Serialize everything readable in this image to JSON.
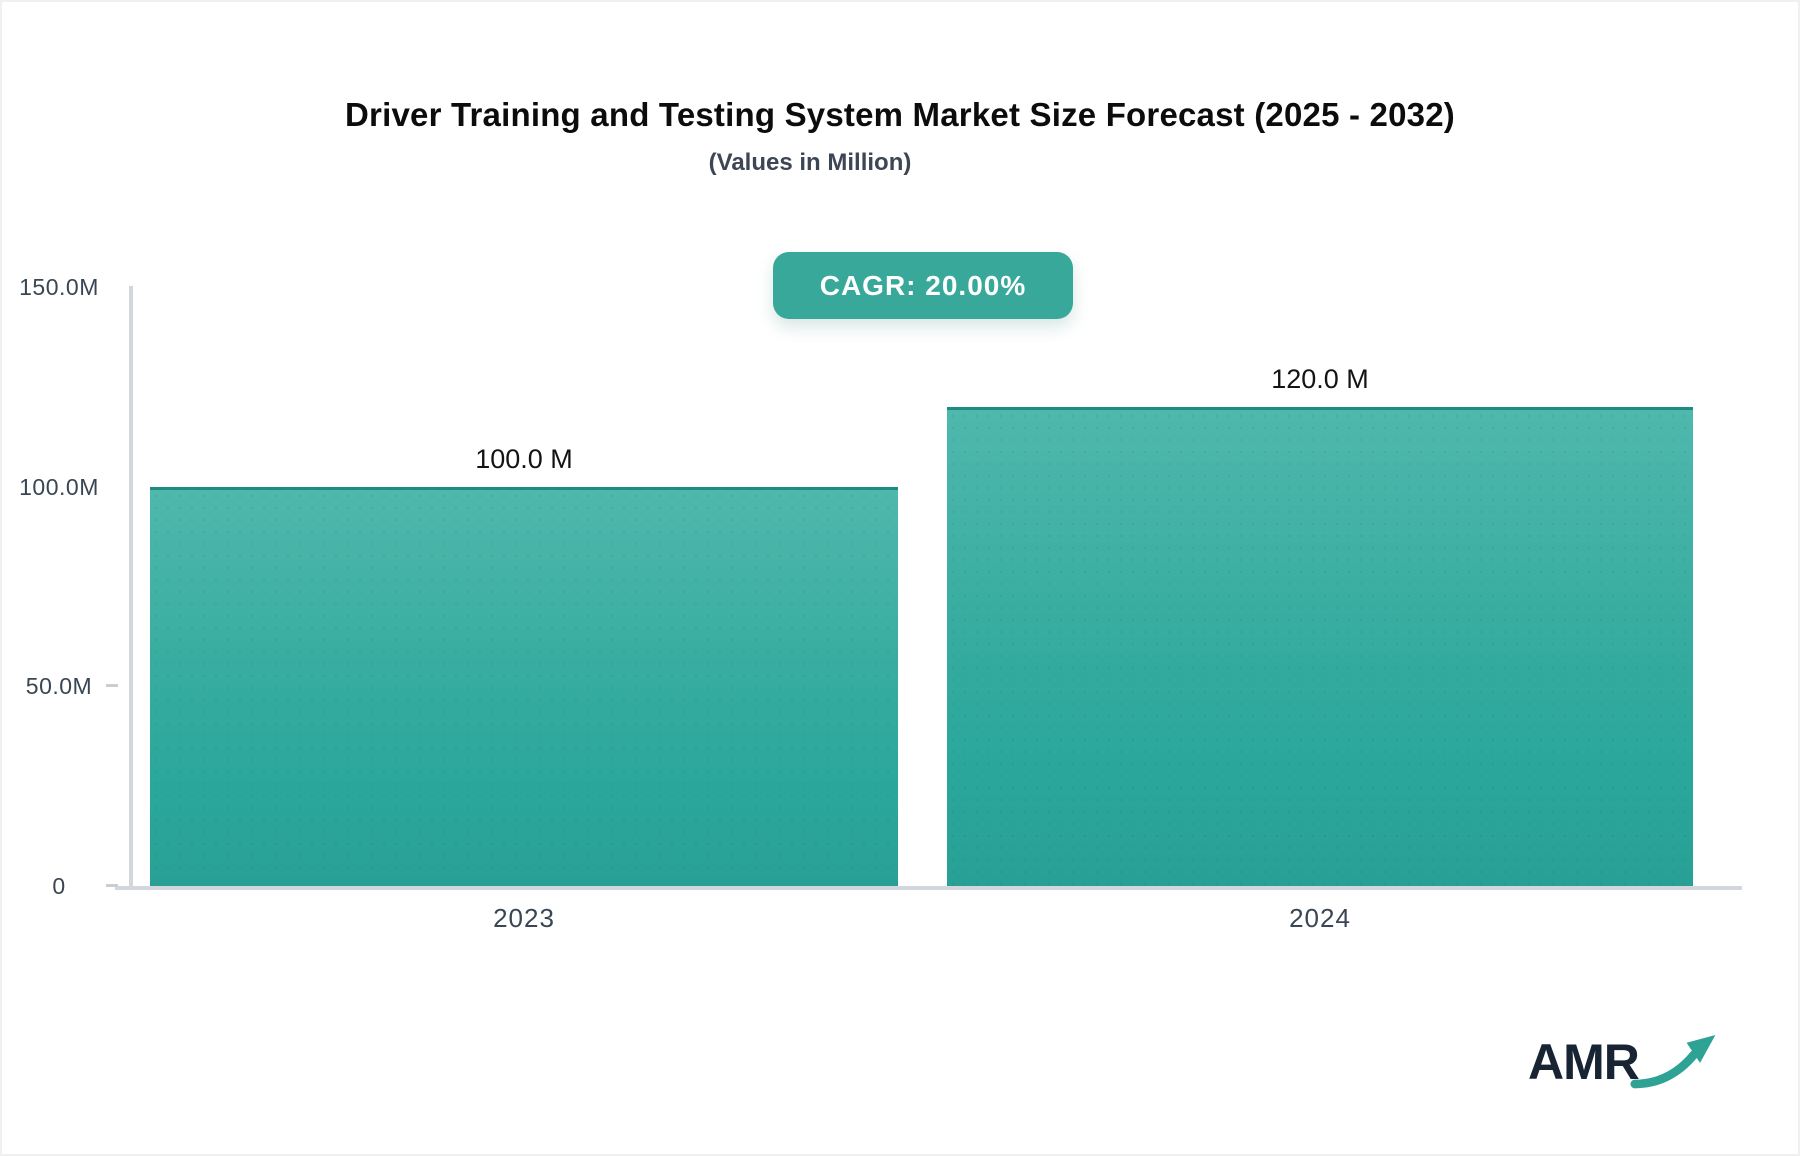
{
  "chart_data": {
    "type": "bar",
    "title": "Driver Training and Testing System Market Size Forecast (2025 - 2032)",
    "subtitle": "(Values in Million)",
    "annotation": "CAGR: 20.00%",
    "categories": [
      "2023",
      "2024"
    ],
    "values": [
      100.0,
      120.0
    ],
    "value_labels": [
      "100.0 M",
      "120.0 M"
    ],
    "xlabel": "",
    "ylabel": "",
    "ylim": [
      0,
      150
    ],
    "yticks": [
      {
        "label": "0",
        "value": 0,
        "dash": true
      },
      {
        "label": "50.0M",
        "value": 50,
        "dash": true
      },
      {
        "label": "100.0M",
        "value": 100,
        "dash": false
      },
      {
        "label": "150.0M",
        "value": 150,
        "dash": false
      }
    ],
    "grid": false,
    "legend": null,
    "bar_color_top": "#4fb8ad",
    "bar_color_bottom": "#29a095",
    "bar_border_color": "#1c8b81",
    "axis_color": "#d3d6dc",
    "badge_bg": "#38a89b",
    "badge_text_color": "#ffffff"
  },
  "logo": {
    "text": "AMR"
  }
}
